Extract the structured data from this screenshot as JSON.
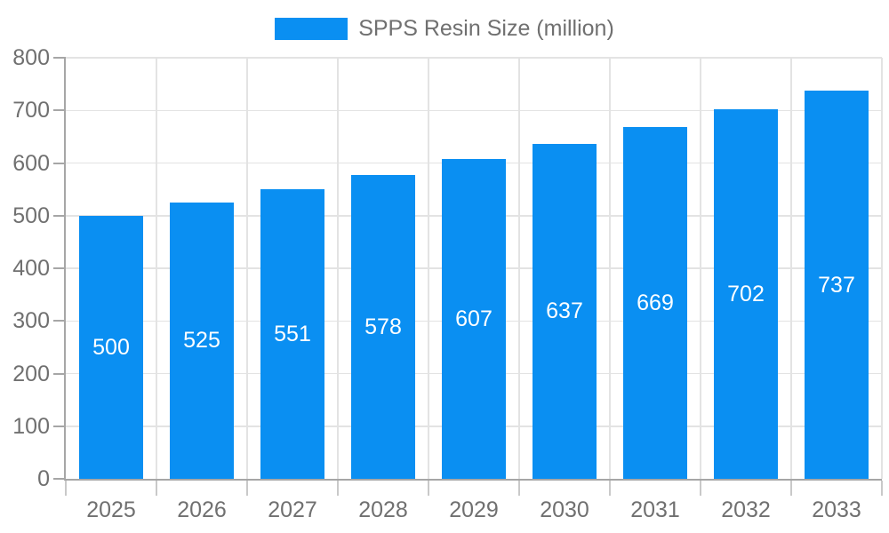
{
  "legend": {
    "label": "SPPS Resin Size (million)"
  },
  "chart_data": {
    "type": "bar",
    "title": "",
    "legend_label": "SPPS Resin Size (million)",
    "legend_position": "top",
    "categories": [
      "2025",
      "2026",
      "2027",
      "2028",
      "2029",
      "2030",
      "2031",
      "2032",
      "2033"
    ],
    "series": [
      {
        "name": "SPPS Resin Size (million)",
        "values": [
          500,
          525,
          551,
          578,
          607,
          637,
          669,
          702,
          737
        ]
      }
    ],
    "xlabel": "",
    "ylabel": "",
    "ylim": [
      0,
      800
    ],
    "ytick_interval": 100,
    "ytick_labels": [
      "0",
      "100",
      "200",
      "300",
      "400",
      "500",
      "600",
      "700",
      "800"
    ],
    "grid": true,
    "bar_value_labels_inside": true,
    "colors": {
      "bar": "#0a8ff2",
      "axis": "#a6a6a6",
      "grid": "#e3e3e3",
      "tick": "#c9c9c9",
      "text": "#707070",
      "bar_label": "#ffffff"
    }
  }
}
